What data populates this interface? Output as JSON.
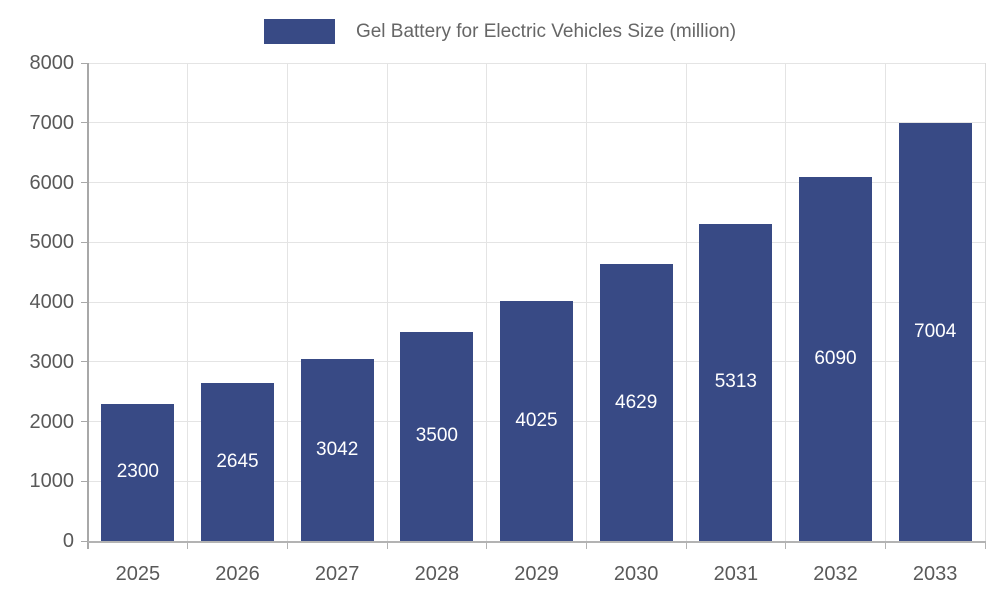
{
  "chart_data": {
    "type": "bar",
    "legend_label": "Gel Battery for Electric Vehicles Size (million)",
    "categories": [
      "2025",
      "2026",
      "2027",
      "2028",
      "2029",
      "2030",
      "2031",
      "2032",
      "2033"
    ],
    "values": [
      2300,
      2645,
      3042,
      3500,
      4025,
      4629,
      5313,
      6090,
      7004
    ],
    "ylim": [
      0,
      8000
    ],
    "yticks": [
      0,
      1000,
      2000,
      3000,
      4000,
      5000,
      6000,
      7000,
      8000
    ],
    "grid": true,
    "legend_position": "top",
    "colors": {
      "bar": "#384a85",
      "bar_label": "#ffffff",
      "axis_text": "#595959",
      "legend_text": "#666666",
      "grid": "#e4e4e4",
      "axis_line": "#a8a8a8",
      "bottom_line": "#b3b3b3",
      "right_line": "#dcdcdc"
    }
  }
}
